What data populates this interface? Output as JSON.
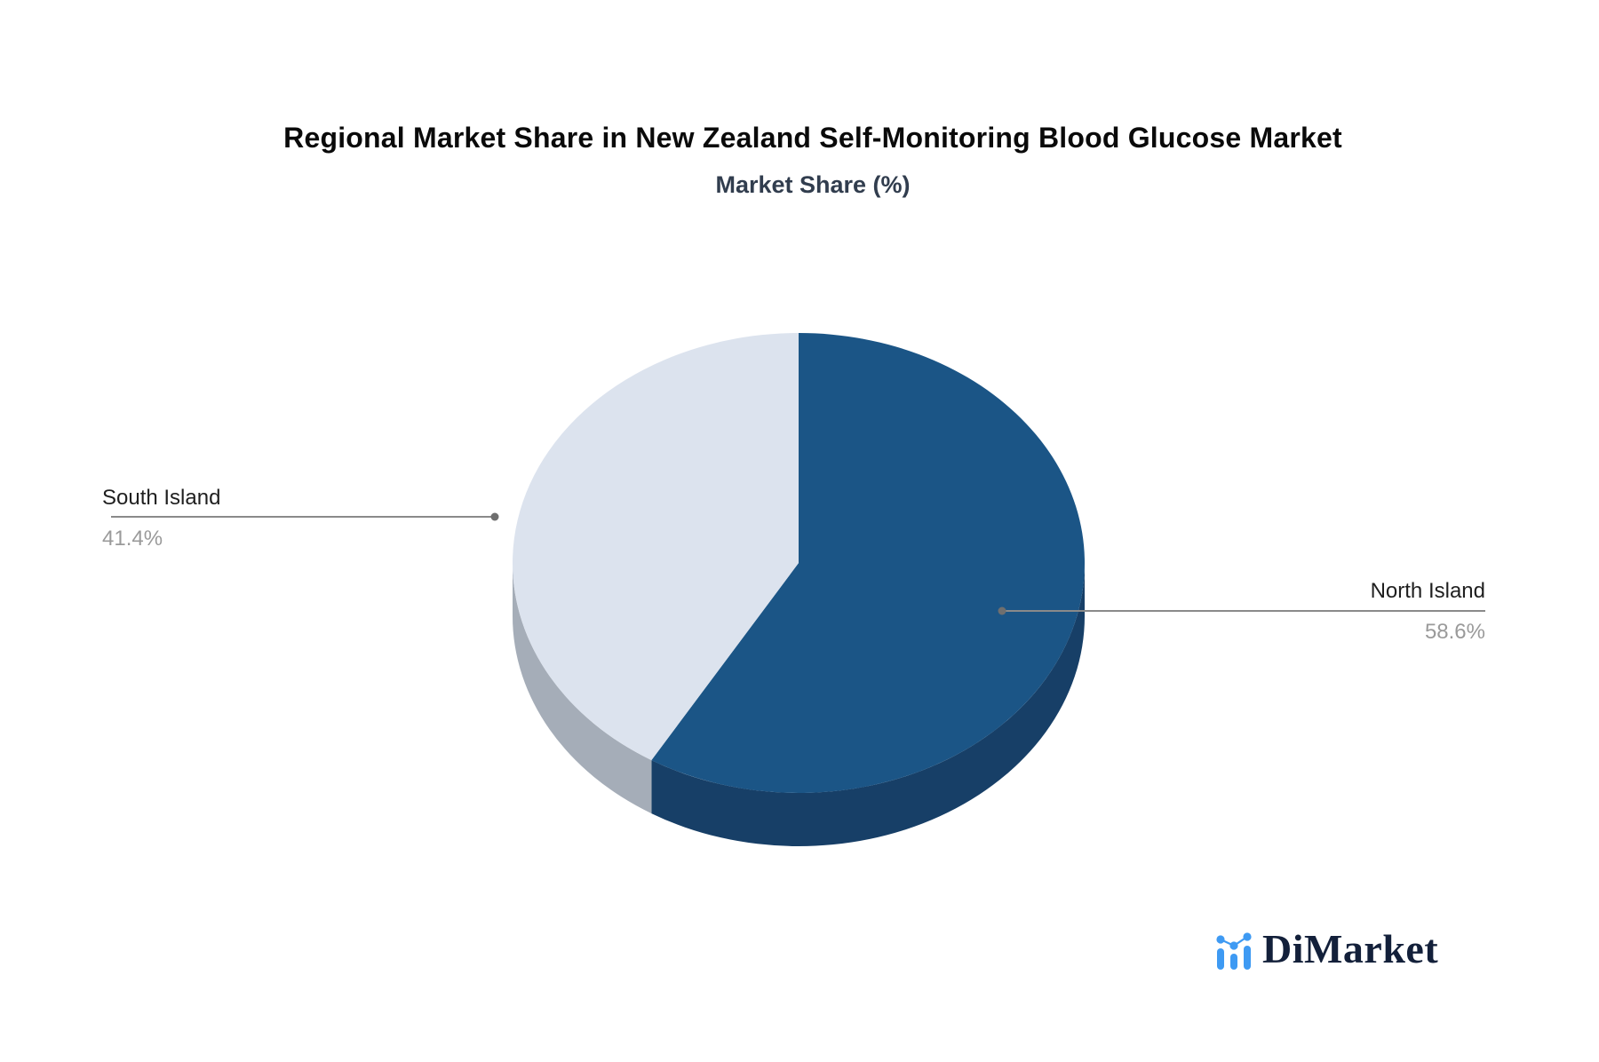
{
  "chart_data": {
    "type": "pie",
    "title": "Regional Market Share in New Zealand Self-Monitoring Blood Glucose Market",
    "subtitle": "Market Share (%)",
    "effect": "3d",
    "start_angle_deg": 0,
    "direction": "clockwise",
    "legend": "none",
    "slices": [
      {
        "name": "North Island",
        "value": 58.6,
        "label_pct": "58.6%",
        "color": "#1b5586",
        "side_color": "#173f67"
      },
      {
        "name": "South Island",
        "value": 41.4,
        "label_pct": "41.4%",
        "color": "#dce3ee",
        "side_color": "#a5adb8"
      }
    ],
    "connector_color": "#8a8a8a",
    "connector_dot_color": "#6f6f6f",
    "label_name_color": "#1f1f1f",
    "label_pct_color": "#9a9a9a",
    "title_color": "#0a0a0a",
    "subtitle_color": "#313d4e",
    "background_color": "#ffffff"
  },
  "brand": {
    "name": "DiMarket",
    "icon": "bar-chart-logo",
    "text_color": "#13203a",
    "accent_color": "#3e9af3"
  }
}
